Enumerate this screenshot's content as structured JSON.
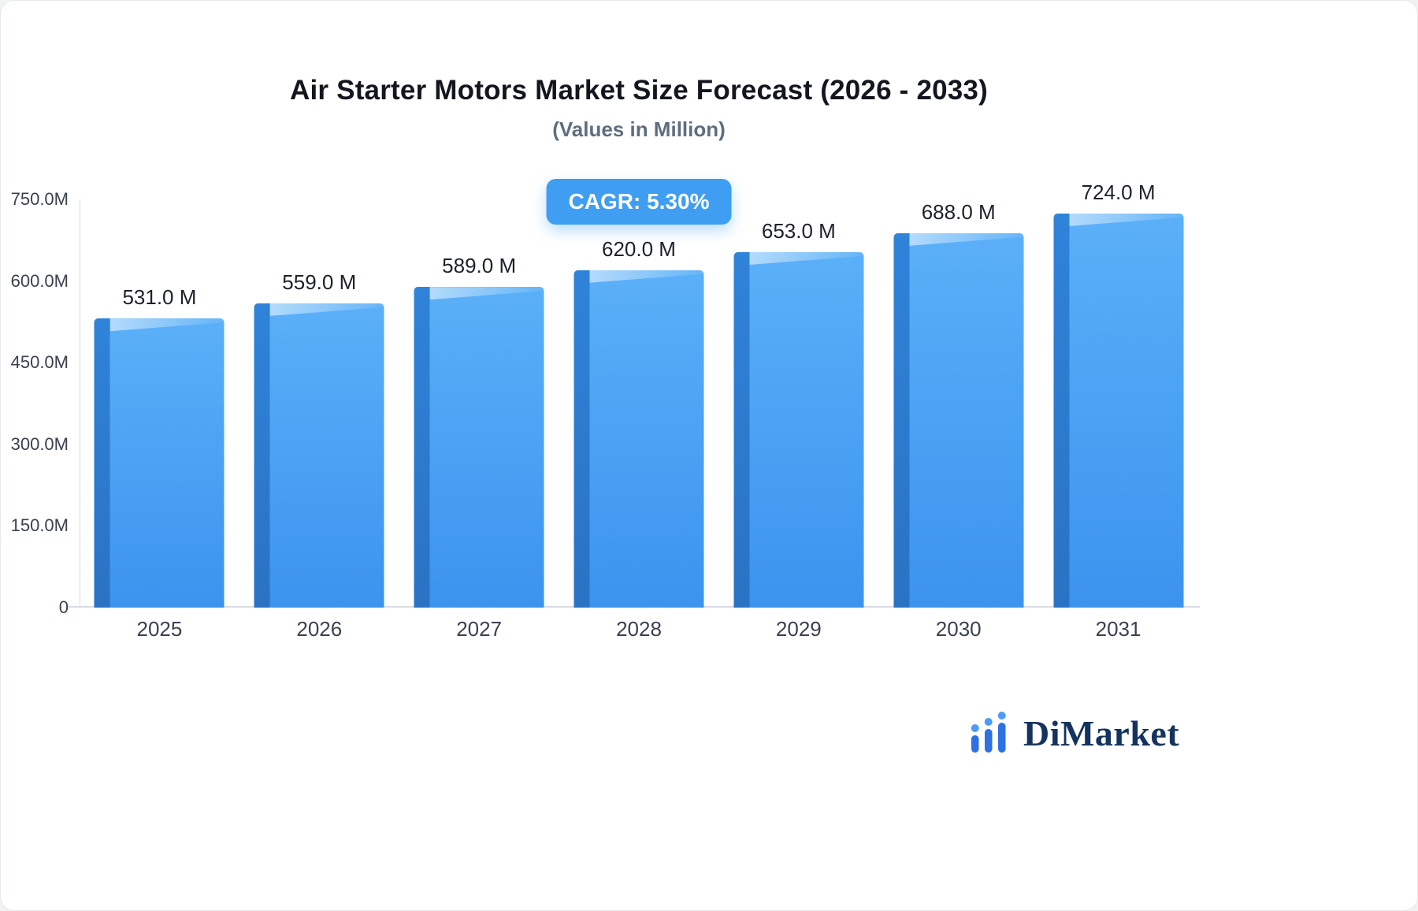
{
  "header": {
    "title": "Air Starter Motors Market Size Forecast (2026 - 2033)",
    "subtitle": "(Values in Million)"
  },
  "badge": {
    "label": "CAGR: 5.30%"
  },
  "chart_data": {
    "type": "bar",
    "title": "Air Starter Motors Market Size Forecast (2026 - 2033)",
    "subtitle": "(Values in Million)",
    "categories": [
      "2025",
      "2026",
      "2027",
      "2028",
      "2029",
      "2030",
      "2031"
    ],
    "values": [
      531,
      559,
      589,
      620,
      653,
      688,
      724
    ],
    "value_labels": [
      "531.0 M",
      "559.0 M",
      "589.0 M",
      "620.0 M",
      "653.0 M",
      "688.0 M",
      "724.0 M"
    ],
    "xlabel": "",
    "ylabel": "",
    "ylim": [
      0,
      750
    ],
    "yticks": [
      {
        "value": 750,
        "label": "750.0M"
      },
      {
        "value": 600,
        "label": "600.0M"
      },
      {
        "value": 450,
        "label": "450.0M"
      },
      {
        "value": 300,
        "label": "300.0M"
      },
      {
        "value": 150,
        "label": "150.0M"
      },
      {
        "value": 0,
        "label": "0"
      }
    ],
    "grid": false,
    "legend": "none",
    "annotation": "CAGR: 5.30%",
    "colors": {
      "bar_top": "#5bb0f8",
      "bar_bottom": "#3c93ee",
      "bar_side": "#2f83d9",
      "bar_side_deep": "#2a72c4",
      "badge_bg": "#3f9ef2",
      "axis": "#d8dce2",
      "text_strong": "#13161f"
    }
  },
  "brand": {
    "name": "DiMarket"
  }
}
